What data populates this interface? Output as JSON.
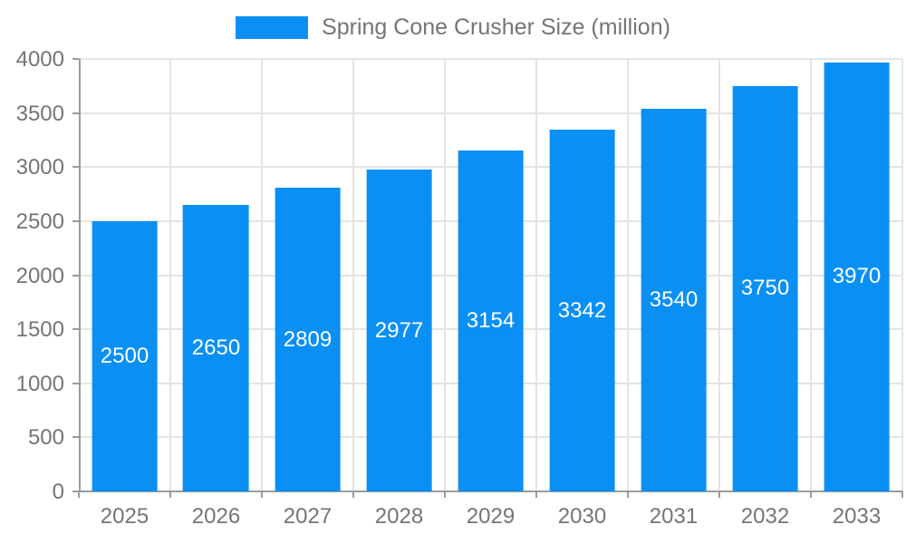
{
  "chart_data": {
    "type": "bar",
    "title": "Spring Cone Crusher Size (million)",
    "legend": [
      "Spring Cone Crusher Size (million)"
    ],
    "legend_position": "top-center",
    "categories": [
      "2025",
      "2026",
      "2027",
      "2028",
      "2029",
      "2030",
      "2031",
      "2032",
      "2033"
    ],
    "values": [
      2500,
      2650,
      2809,
      2977,
      3154,
      3342,
      3540,
      3750,
      3970
    ],
    "xlabel": "",
    "ylabel": "",
    "ylim": [
      0,
      4000
    ],
    "ytick_step": 500,
    "yticks": [
      0,
      500,
      1000,
      1500,
      2000,
      2500,
      3000,
      3500,
      4000
    ],
    "grid": true,
    "bar_value_labels_visible": true
  },
  "colors": {
    "bar": "#0a90f5",
    "grid": "#e4e4e4",
    "axis": "#9b9b9b",
    "tick_text": "#757575",
    "bar_label_text": "#ffffff",
    "background": "#ffffff"
  }
}
